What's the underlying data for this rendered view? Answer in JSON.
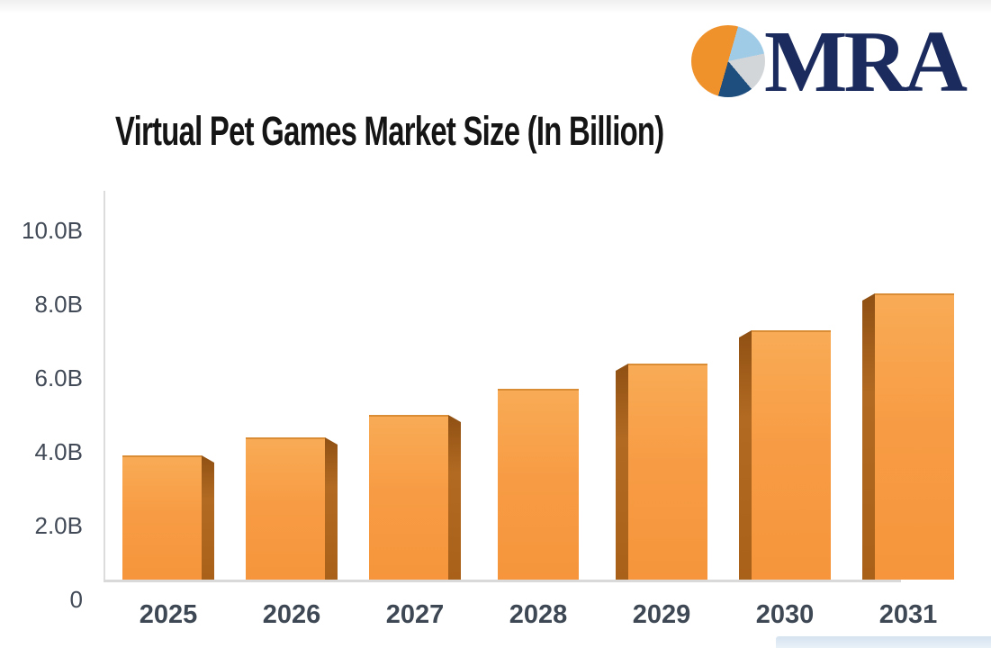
{
  "logo": {
    "brand": "MRA",
    "text_color": "#1B2B5E",
    "pie_colors": {
      "orange": "#F0922B",
      "light_blue": "#9FCBE7",
      "gray": "#D3D6D9",
      "navy": "#1E4E7D"
    }
  },
  "chart_data": {
    "type": "bar",
    "title": "Virtual Pet Games Market Size (In Billion)",
    "categories": [
      "2025",
      "2026",
      "2027",
      "2028",
      "2029",
      "2030",
      "2031"
    ],
    "values": [
      3.9,
      4.4,
      5.0,
      5.7,
      6.4,
      7.3,
      8.3
    ],
    "unit": "B",
    "ylim": [
      0,
      10
    ],
    "yticks": [
      {
        "label": "10.0B",
        "value": 10
      },
      {
        "label": "8.0B",
        "value": 8
      },
      {
        "label": "6.0B",
        "value": 6
      },
      {
        "label": "4.0B",
        "value": 4
      },
      {
        "label": "2.0B",
        "value": 2
      },
      {
        "label": "0",
        "value": 0
      }
    ],
    "grid": false,
    "legend": "none",
    "colors": {
      "bar_face_top": "#F9AB55",
      "bar_face_bottom": "#F6953B",
      "bar_side": "#A96018",
      "axis_line": "#DBDBDB",
      "tick_text": "#414A56",
      "title_text": "#151515"
    }
  }
}
